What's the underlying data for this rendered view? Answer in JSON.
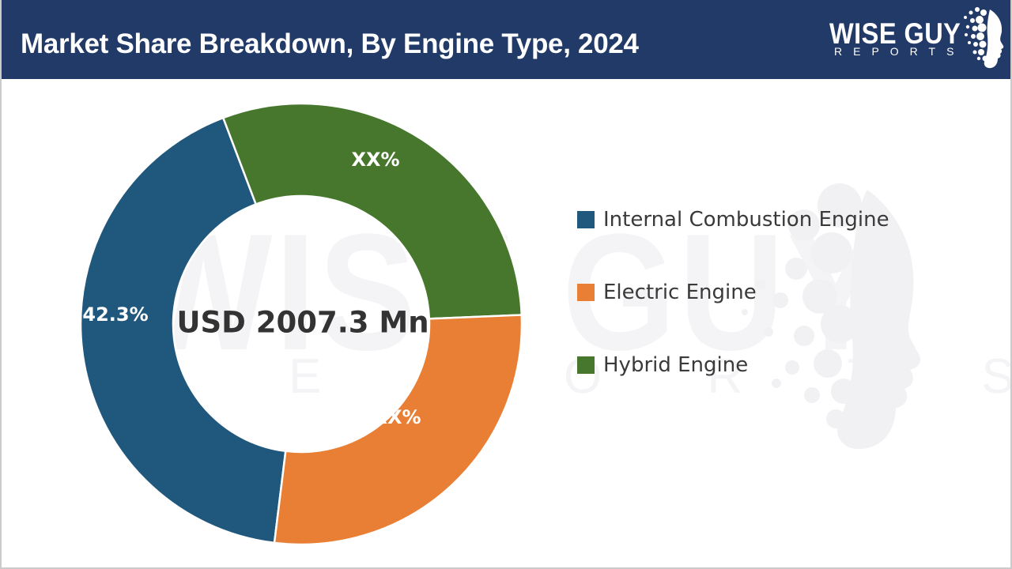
{
  "header": {
    "title": "Market Share Breakdown, By Engine Type, 2024",
    "logo": {
      "name": "WISE GUY",
      "sub": "REPORTS"
    }
  },
  "chart_data": {
    "type": "pie",
    "subtype": "donut",
    "title": "Market Share Breakdown, By Engine Type, 2024",
    "center_label": "USD 2007.3 Mn",
    "start_angle_deg_clockwise_from_top": 187,
    "direction": "clockwise",
    "inner_radius_ratio": 0.58,
    "slices": [
      {
        "name": "Internal Combustion Engine",
        "value_pct": 42.3,
        "display_label": "42.3%",
        "color": "#20577c"
      },
      {
        "name": "Hybrid Engine",
        "value_pct": 30.1,
        "display_label": "XX%",
        "color": "#47772d"
      },
      {
        "name": "Electric Engine",
        "value_pct": 27.6,
        "display_label": "XX%",
        "color": "#e87f35"
      }
    ],
    "notes": "values for Hybrid and Electric are masked as XX% in the figure; 42.3% shown for Internal Combustion Engine",
    "legend_position": "right",
    "legend_order": [
      "Internal Combustion Engine",
      "Electric Engine",
      "Hybrid Engine"
    ]
  },
  "legend": {
    "items": [
      {
        "label": "Internal Combustion Engine",
        "color": "#20577c"
      },
      {
        "label": "Electric Engine",
        "color": "#e87f35"
      },
      {
        "label": "Hybrid Engine",
        "color": "#47772d"
      }
    ]
  },
  "watermark": {
    "line1": "WISE GUY",
    "line2": "R E P O R T S"
  },
  "colors": {
    "header_bg": "#223a67",
    "page_bg": "#ffffff",
    "center_text": "#333333",
    "legend_text": "#3a3a3a",
    "slice_label_text": "#ffffff",
    "watermark": "#f2f2f4",
    "border": "#cbcbcb"
  }
}
